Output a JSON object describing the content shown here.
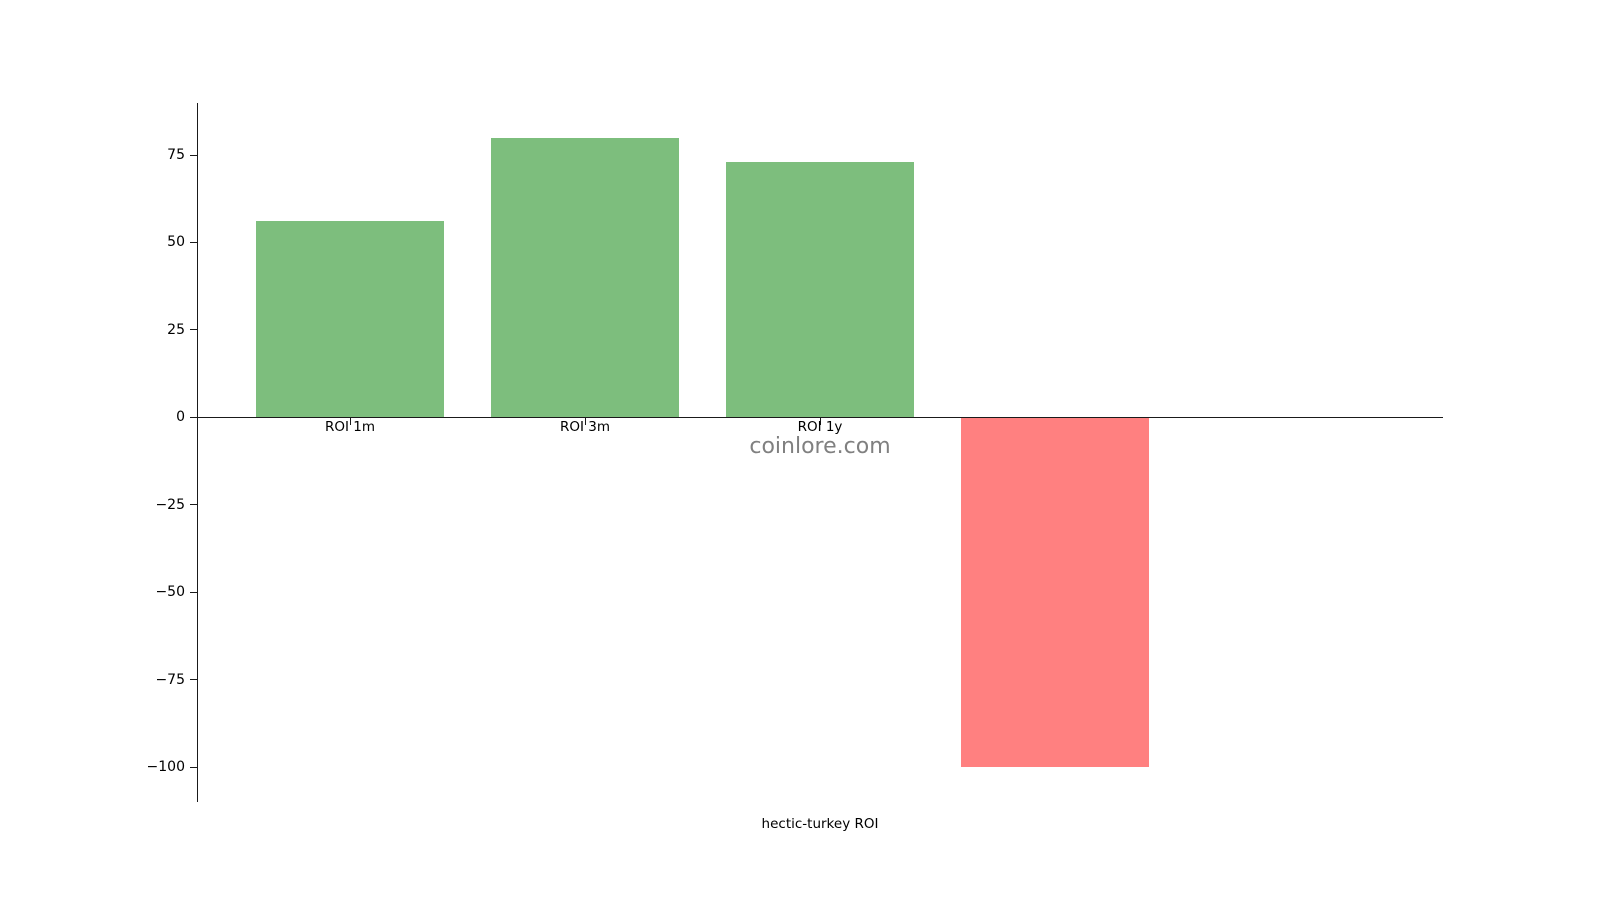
{
  "chart_data": {
    "type": "bar",
    "title": "hectic-turkey ROI",
    "title_position": "bottom",
    "xlabel": "",
    "ylabel": "",
    "categories": [
      "ROI 1m",
      "ROI 3m",
      "ROI 1y",
      ""
    ],
    "values": [
      56,
      80,
      73,
      -100
    ],
    "bar_colors": [
      "#7DBE7D",
      "#7DBE7D",
      "#7DBE7D",
      "#FF8080"
    ],
    "yticks": [
      75,
      50,
      25,
      0,
      -25,
      -50,
      -75,
      -100
    ],
    "ytick_labels": [
      "75",
      "50",
      "25",
      "0",
      "−25",
      "−50",
      "−75",
      "−100"
    ],
    "ylim": [
      -110,
      90
    ],
    "grid": false,
    "legend_position": "none",
    "baseline": 0
  },
  "watermark": {
    "text": "coinlore.com",
    "color": "#808080"
  },
  "colors": {
    "positive_bar": "#7DBE7D",
    "negative_bar": "#FF8080",
    "axis": "#1a1a1a",
    "text": "#000000"
  }
}
